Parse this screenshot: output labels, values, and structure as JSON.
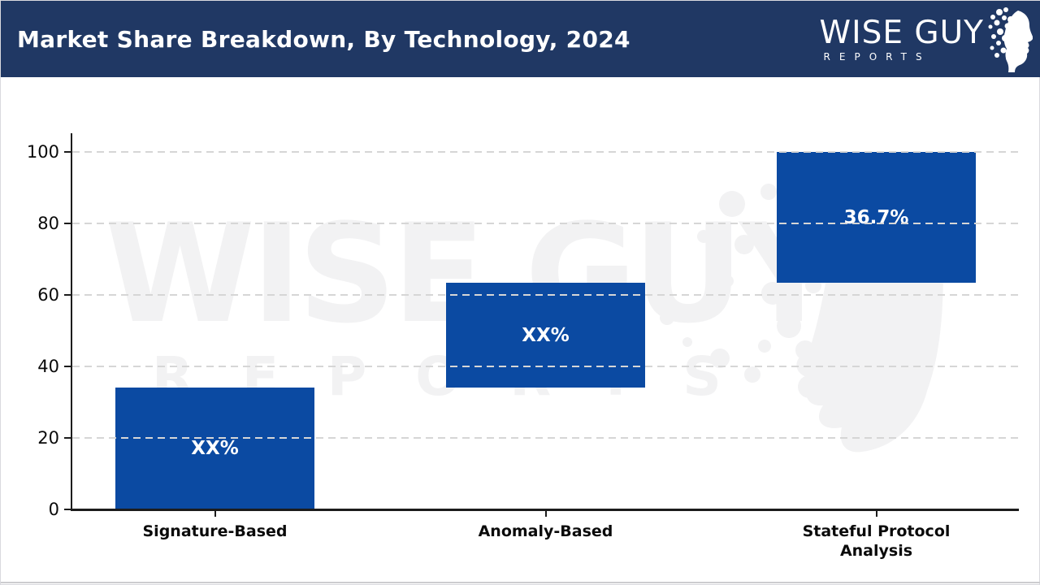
{
  "header": {
    "title": "Market Share Breakdown, By Technology, 2024",
    "background": "#203864",
    "logo": {
      "wordmark": "WISE GUY",
      "subtext": "REPORTS",
      "head_icon": "dotted-face-profile"
    }
  },
  "watermark": {
    "line1": "WISE GUY",
    "line2": "REPORTS",
    "head_icon": "dotted-face-profile",
    "color": "#f2f2f3"
  },
  "chart_data": {
    "type": "bar",
    "subtype": "waterfall",
    "title": "Market Share Breakdown, By Technology, 2024",
    "xlabel": "",
    "ylabel": "",
    "categories": [
      "Signature-Based",
      "Anomaly-Based",
      "Stateful Protocol\nAnalysis"
    ],
    "segments": [
      {
        "category": "Signature-Based",
        "start": 0,
        "end": 34,
        "value": 34,
        "value_label": "XX%"
      },
      {
        "category": "Anomaly-Based",
        "start": 34,
        "end": 63.3,
        "value": 29.3,
        "value_label": "XX%"
      },
      {
        "category": "Stateful Protocol Analysis",
        "start": 63.3,
        "end": 100,
        "value": 36.7,
        "value_label": "36.7%"
      }
    ],
    "ylim": [
      0,
      100
    ],
    "yticks": [
      0,
      20,
      40,
      60,
      80,
      100
    ],
    "grid": {
      "axis": "y",
      "style": "dashed",
      "color": "#d6d6d6",
      "above_bars": true
    },
    "legend": "none",
    "bar_color": "#0b4aa2",
    "bar_label_color": "#ffffff",
    "axis_color": "#1c1c1c"
  }
}
